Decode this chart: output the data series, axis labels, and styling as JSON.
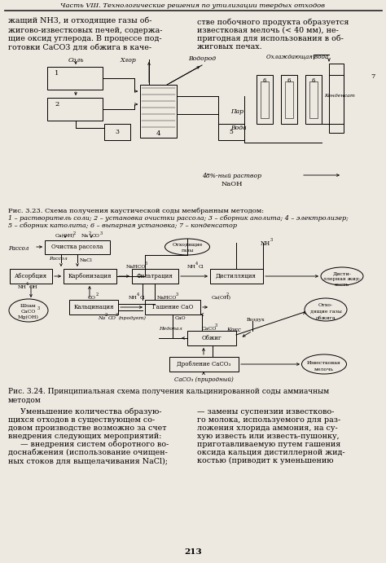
{
  "title_header": "Часть VIII. Технологические решения по утилизации твердых отходов",
  "body_text_left": "жащий NH3, и отходящие газы об-\nжигово-известковых печей, содержа-\nщие оксид углерода. В процессе под-\nготовки CaCO3 для обжига в каче-",
  "body_text_right": "стве побочного продукта образуется\nизвестковая мелочь (< 40 мм), не-\nпригодная для использования в об-\nжиговых печах.",
  "fig1_caption": "Рис. 3.23. Схема получения каустической соды мембранным методом:",
  "fig1_caption2": "1 – растворитель соли; 2 – установка очистки рассола; 3 – сборник анолита; 4 – электролизер;",
  "fig1_caption3": "5 – сборник католита; 6 – выпарная установка; 7 – конденсатор",
  "fig2_caption": "Рис. 3.24. Принципиальная схема получения кальцинированной соды аммиачным",
  "fig2_caption2": "методом",
  "bottom_text_left1": "     Уменьшение количества образую-",
  "bottom_text_left2": "щихся отходов в существующем со-",
  "bottom_text_left3": "довом производстве возможно за счет",
  "bottom_text_left4": "внедрения следующих мероприятий:",
  "bottom_text_left5": "     — внедрения систем оборотного во-",
  "bottom_text_left6": "доснабжения (использование очищен-",
  "bottom_text_left7": "ных стоков для выщелачивания NaCl);",
  "bottom_text_right1": "— замены суспензии известково-",
  "bottom_text_right2": "го молока, используемого для раз-",
  "bottom_text_right3": "ложения хлорида аммония, на су-",
  "bottom_text_right4": "хую известь или известь-пушонку,",
  "bottom_text_right5": "приготавливаемую путем гашения",
  "bottom_text_right6": "оксида кальция дистиллерной жид-",
  "bottom_text_right7": "костью (приводит к уменьшению",
  "page_number": "213",
  "bg_color": "#ede8e0"
}
